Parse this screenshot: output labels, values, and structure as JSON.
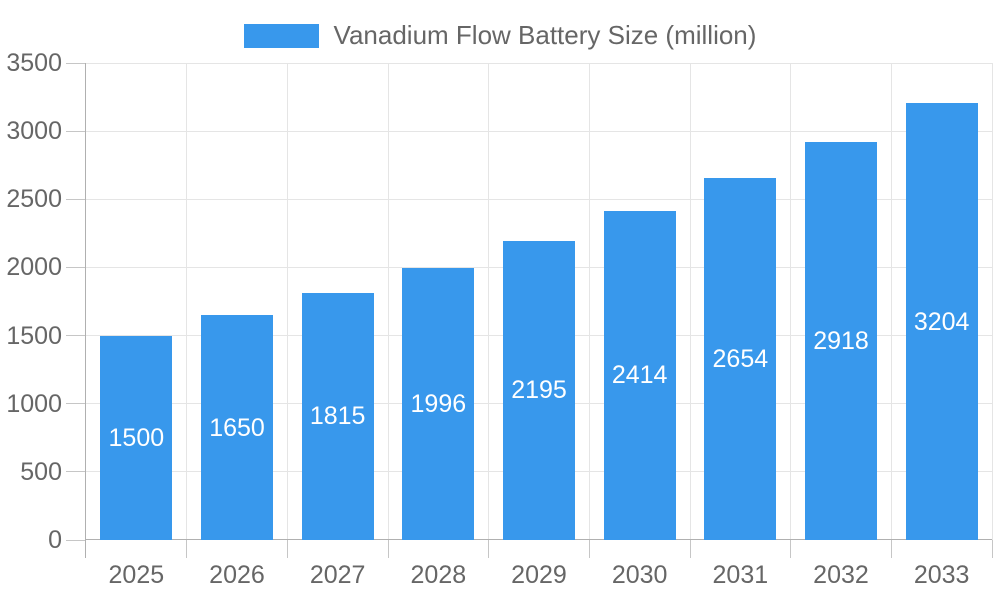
{
  "chart_data": {
    "type": "bar",
    "title": "",
    "xlabel": "",
    "ylabel": "",
    "series_name": "Vanadium Flow Battery Size (million)",
    "categories": [
      "2025",
      "2026",
      "2027",
      "2028",
      "2029",
      "2030",
      "2031",
      "2032",
      "2033"
    ],
    "values": [
      1500,
      1650,
      1815,
      1996,
      2195,
      2414,
      2654,
      2918,
      3204
    ],
    "bar_value_labels": [
      "1500",
      "1650",
      "1815",
      "1996",
      "2195",
      "2414",
      "2654",
      "2918",
      "3204"
    ],
    "ylim": [
      0,
      3500
    ],
    "ytick_step": 500,
    "ytick_labels": [
      "0",
      "500",
      "1000",
      "1500",
      "2000",
      "2500",
      "3000",
      "3500"
    ],
    "grid": true,
    "legend_position": "top-center",
    "colors": {
      "bar": "#3898EC",
      "bar_label_text": "#FFFFFF",
      "axis_text": "#666666",
      "legend_text": "#666666",
      "gridline": "#E5E5E5",
      "axis_line": "#B0B0B0",
      "tick": "#C6C6C6",
      "background": "#FFFFFF"
    }
  }
}
